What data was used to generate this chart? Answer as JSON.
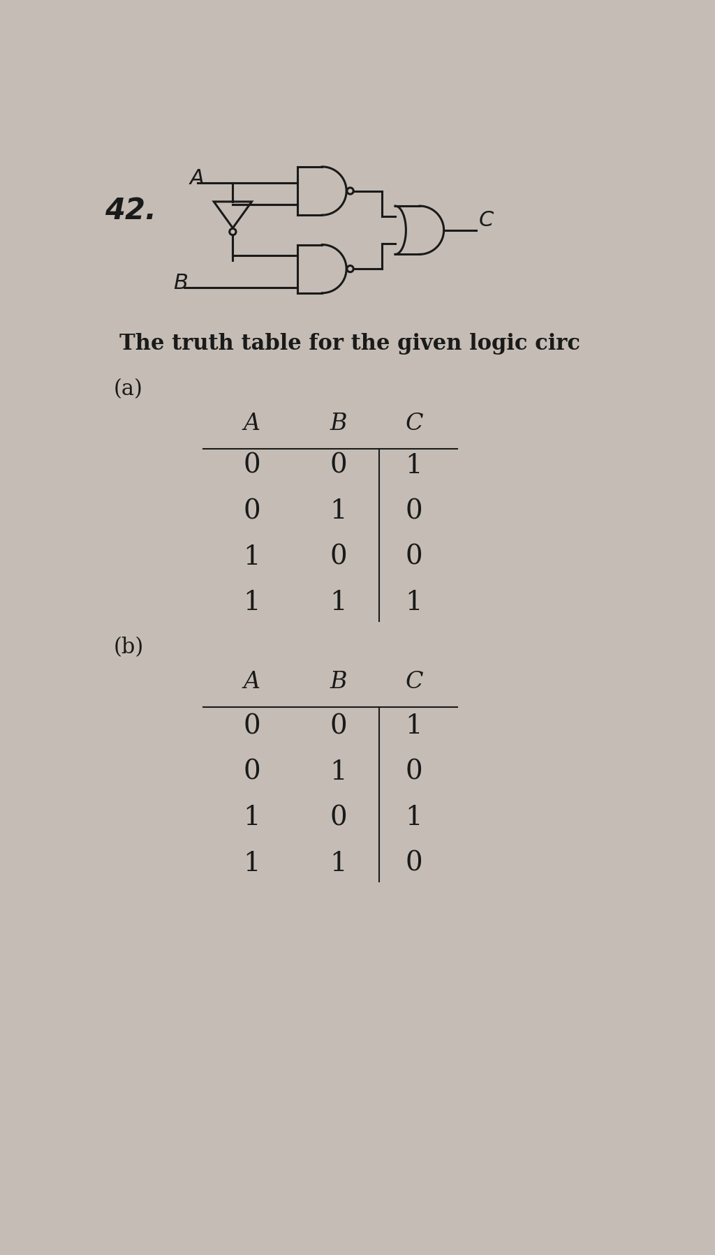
{
  "question_num": "42.",
  "description": "The truth table for the given logic circ",
  "background_color": "#c5bdb5",
  "text_color": "#1a1a1a",
  "table_a_label": "(a)",
  "table_b_label": "(b)",
  "col_headers": [
    "A",
    "B",
    "C"
  ],
  "table_a_data": [
    [
      0,
      0,
      1
    ],
    [
      0,
      1,
      0
    ],
    [
      1,
      0,
      0
    ],
    [
      1,
      1,
      1
    ]
  ],
  "table_b_data": [
    [
      0,
      0,
      1
    ],
    [
      0,
      1,
      0
    ],
    [
      1,
      0,
      1
    ],
    [
      1,
      1,
      0
    ]
  ],
  "font_size_num": 30,
  "font_size_header": 24,
  "font_size_data": 28,
  "font_size_desc": 22,
  "font_size_ab_label": 22
}
